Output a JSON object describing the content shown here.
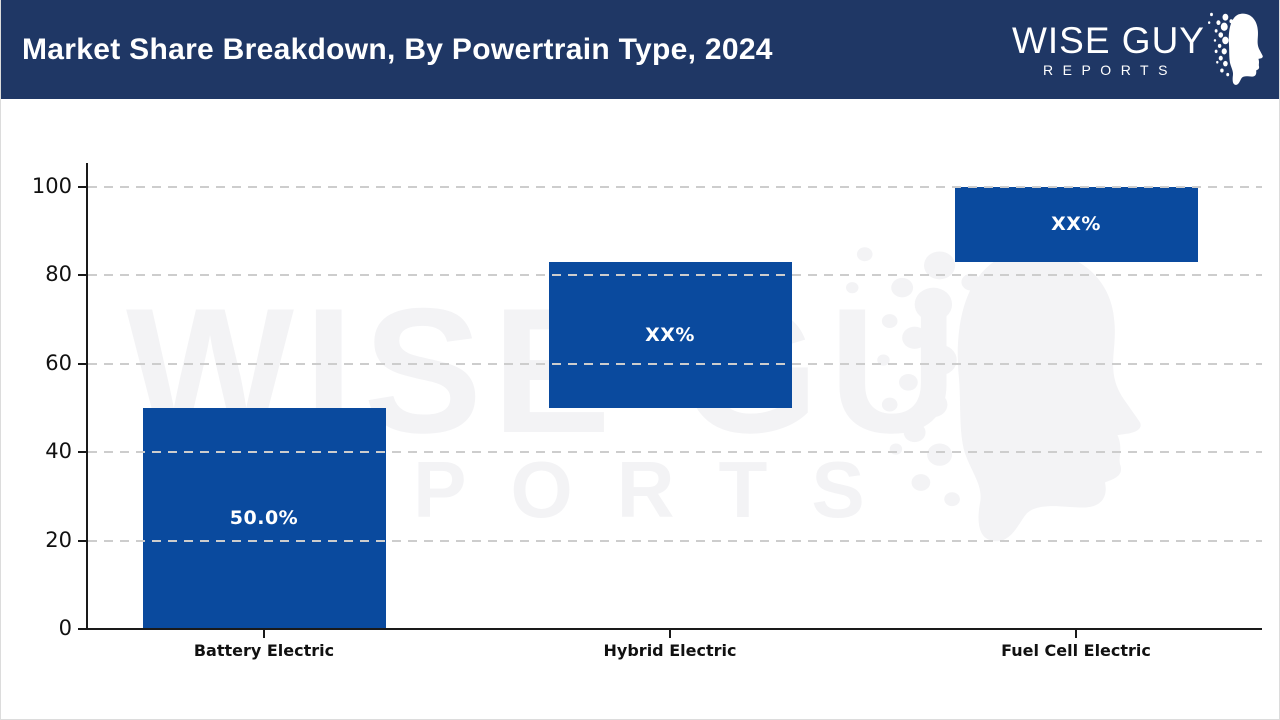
{
  "header": {
    "title": "Market Share Breakdown, By Powertrain Type, 2024",
    "bg_color": "#1f3765",
    "logo": {
      "line1": "WISE GUY",
      "line2": "REPORTS"
    }
  },
  "watermark": {
    "line1": "WISE GUY",
    "line2": "REPORTS"
  },
  "chart_data": {
    "type": "bar",
    "subtype": "waterfall-stacked-breakdown",
    "title": "Market Share Breakdown, By Powertrain Type, 2024",
    "categories": [
      "Battery Electric",
      "Hybrid Electric",
      "Fuel Cell Electric"
    ],
    "segments": [
      {
        "category": "Battery Electric",
        "start": 0,
        "end": 50,
        "label": "50.0%"
      },
      {
        "category": "Hybrid Electric",
        "start": 50,
        "end": 83,
        "label": "XX%"
      },
      {
        "category": "Fuel Cell Electric",
        "start": 83,
        "end": 100,
        "label": "XX%"
      }
    ],
    "y_ticks": [
      0,
      20,
      40,
      60,
      80,
      100
    ],
    "ylim": [
      0,
      105
    ],
    "xlabel": "",
    "ylabel": "",
    "grid": true,
    "gridline_style": "dashed",
    "gridline_color": "#cdcdcd",
    "bar_color": "#0a4a9e",
    "bar_value_text_color": "#ffffff",
    "legend": "none"
  }
}
